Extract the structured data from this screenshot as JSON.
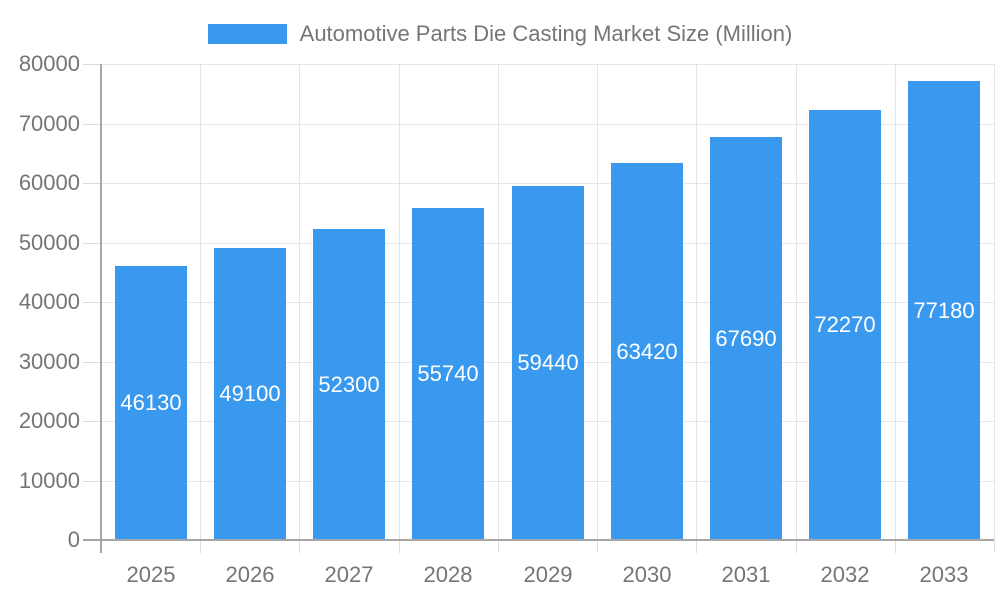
{
  "legend": {
    "label": "Automotive Parts Die Casting Market Size (Million)"
  },
  "chart_data": {
    "type": "bar",
    "title": "Automotive Parts Die Casting Market Size (Million)",
    "categories": [
      "2025",
      "2026",
      "2027",
      "2028",
      "2029",
      "2030",
      "2031",
      "2032",
      "2033"
    ],
    "series": [
      {
        "name": "Automotive Parts Die Casting Market Size (Million)",
        "values": [
          46130,
          49100,
          52300,
          55740,
          59440,
          63420,
          67690,
          72270,
          77180
        ]
      }
    ],
    "data_labels": [
      46130,
      49100,
      52300,
      55740,
      59440,
      63420,
      67690,
      72270,
      77180
    ],
    "xlabel": "",
    "ylabel": "",
    "ylim": [
      0,
      80000
    ],
    "ytick_step": 10000,
    "ytick_labels": [
      "0",
      "10000",
      "20000",
      "30000",
      "40000",
      "50000",
      "60000",
      "70000",
      "80000"
    ],
    "grid": true,
    "legend_position": "top",
    "data_label_position": "center"
  },
  "colors": {
    "bar": "#3999ee",
    "grid": "#e6e6e6",
    "axis": "#a6a6a6",
    "tick": "#dcdcdc",
    "text": "#757575",
    "data_label": "#ffffff",
    "background": "#ffffff"
  }
}
